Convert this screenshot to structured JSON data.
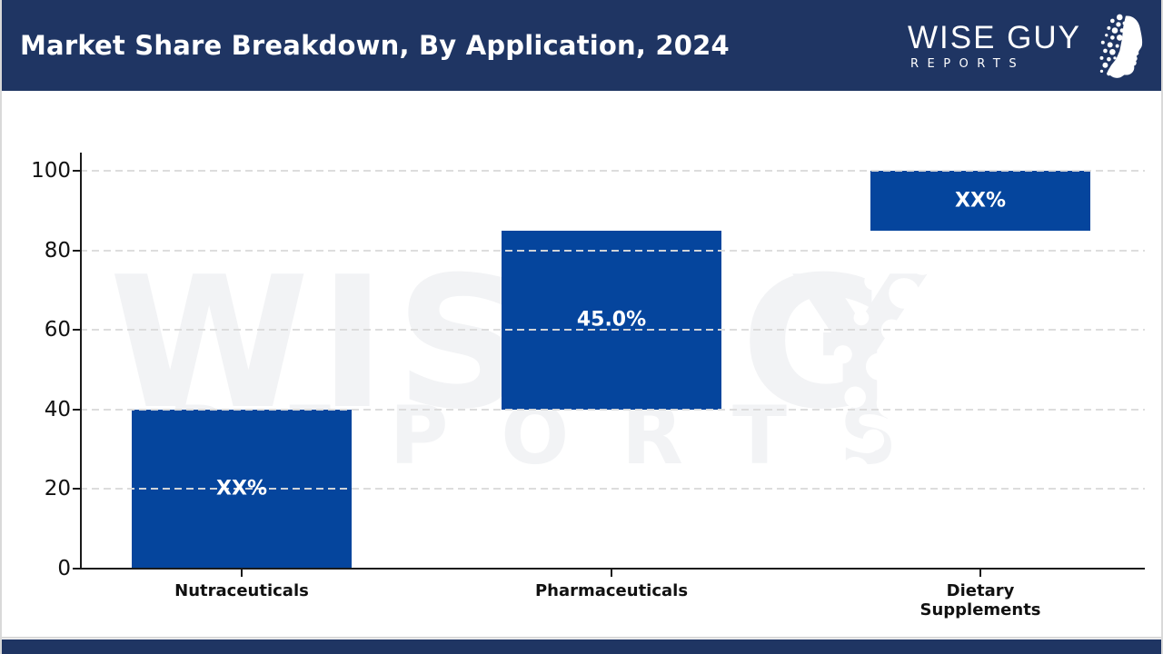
{
  "header": {
    "title": "Market Share Breakdown, By Application, 2024",
    "logo": {
      "line1": "WISE GUY",
      "line2": "REPORTS"
    }
  },
  "watermark": {
    "word1": "WISE G",
    "word2": "Y",
    "word3": "REPORTS"
  },
  "colors": {
    "header_bg": "#1F3563",
    "bar": "#05459D",
    "gridline": "#DBDBDB",
    "axis": "#1A1A1A",
    "bar_label_text": "#FFFFFF",
    "watermark": "#F2F3F5",
    "page_border": "#D9D9D9"
  },
  "chart_data": {
    "type": "bar",
    "subtype": "waterfall-floating-bars",
    "title": "Market Share Breakdown, By Application, 2024",
    "categories": [
      "Nutraceuticals",
      "Pharmaceuticals",
      "Dietary Supplements"
    ],
    "category_label_lines": [
      [
        "Nutraceuticals"
      ],
      [
        "Pharmaceuticals"
      ],
      [
        "Dietary",
        "Supplements"
      ]
    ],
    "segments": [
      {
        "category": "Nutraceuticals",
        "start": 0,
        "end": 40,
        "label": "XX%"
      },
      {
        "category": "Pharmaceuticals",
        "start": 40,
        "end": 85,
        "label": "45.0%"
      },
      {
        "category": "Dietary Supplements",
        "start": 85,
        "end": 100,
        "label": "XX%"
      }
    ],
    "ylim": [
      0,
      104
    ],
    "yticks": [
      0,
      20,
      40,
      60,
      80,
      100
    ],
    "grid": "horizontal dashed, drawn over bars",
    "legend": "none",
    "xlabel": "",
    "ylabel": ""
  }
}
